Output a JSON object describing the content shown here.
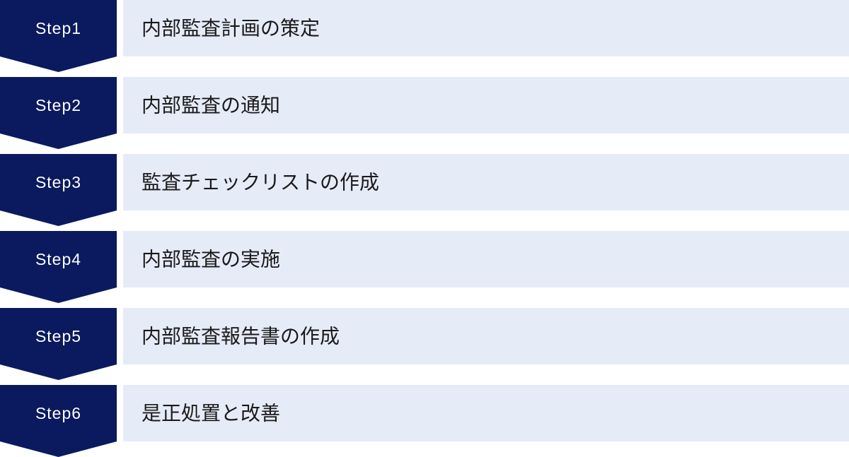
{
  "steps": [
    {
      "label": "Step1",
      "title": "内部監査計画の策定"
    },
    {
      "label": "Step2",
      "title": "内部監査の通知"
    },
    {
      "label": "Step3",
      "title": "監査チェックリストの作成"
    },
    {
      "label": "Step4",
      "title": "内部監査の実施"
    },
    {
      "label": "Step5",
      "title": "内部監査報告書の作成"
    },
    {
      "label": "Step6",
      "title": "是正処置と改善"
    }
  ]
}
